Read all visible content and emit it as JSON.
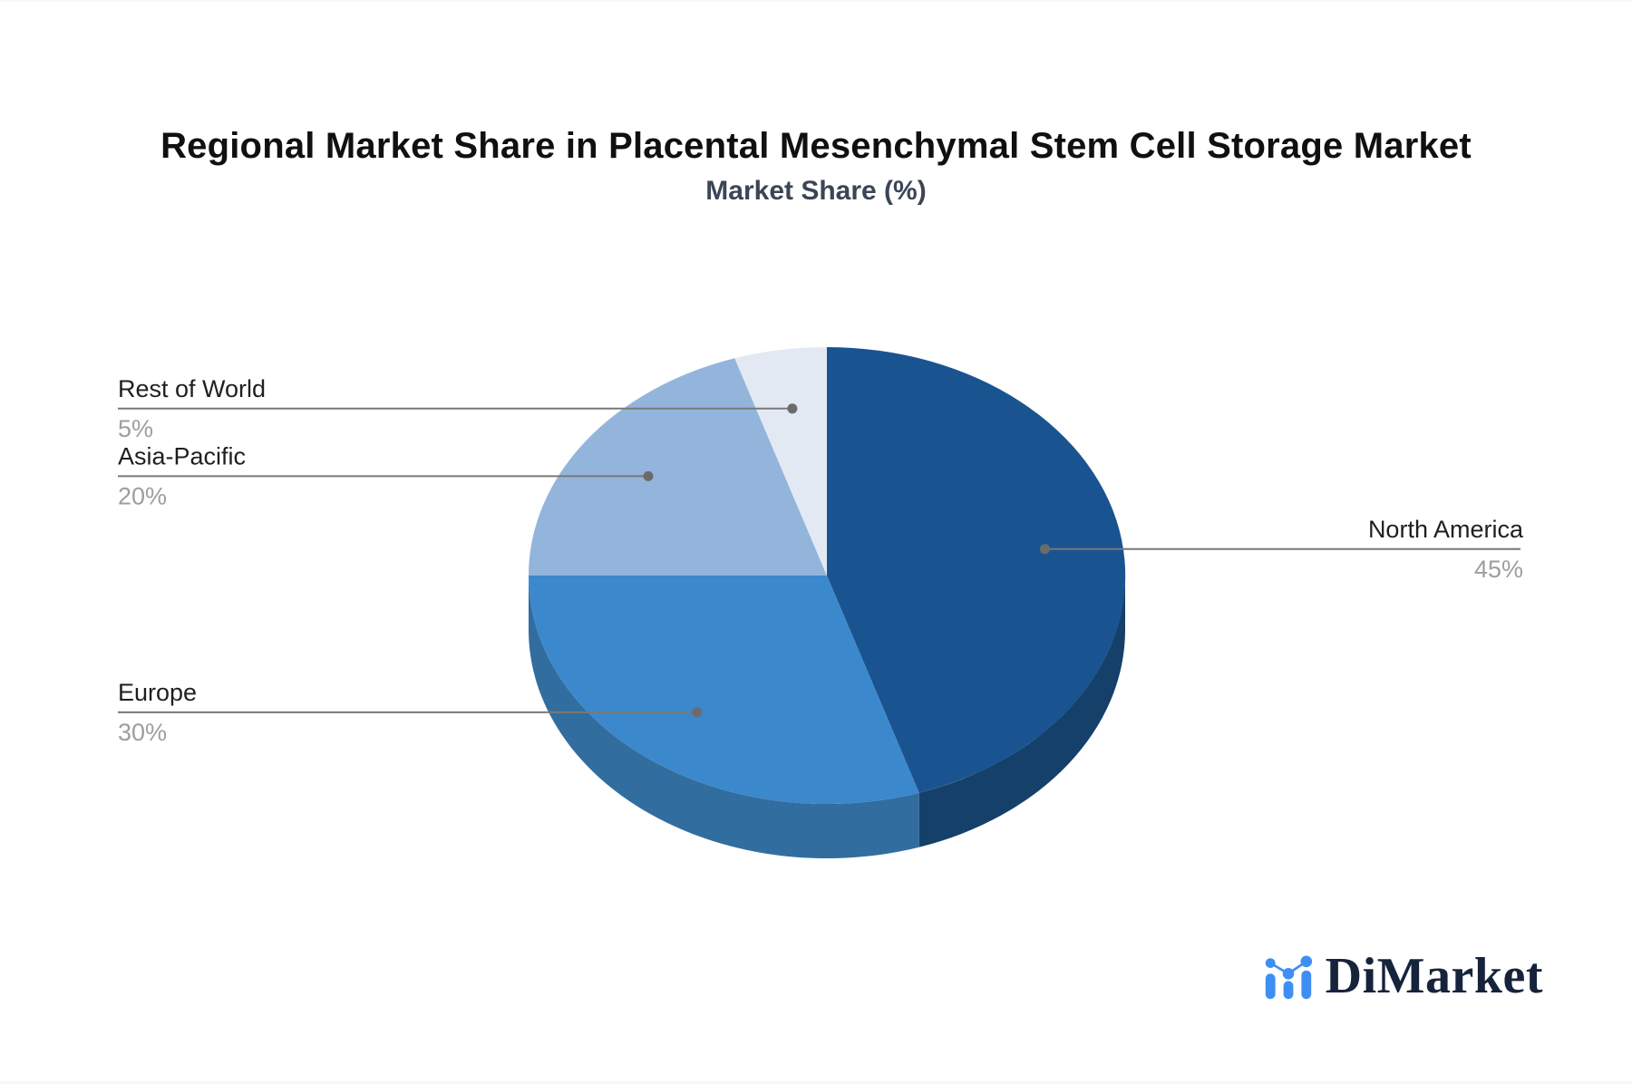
{
  "page": {
    "title": "Regional Market Share in Placental Mesenchymal Stem Cell Storage Market",
    "subtitle": "Market Share (%)"
  },
  "brand": {
    "name": "DiMarket",
    "icon": "bar-chart-logo-icon",
    "icon_color": "#3f8ef3",
    "text_color": "#16233c"
  },
  "chart_data": {
    "type": "pie",
    "style": "pie-3d",
    "title": "Regional Market Share in Placental Mesenchymal Stem Cell Storage Market",
    "subtitle": "Market Share (%)",
    "unit": "%",
    "categories": [
      "North America",
      "Europe",
      "Asia-Pacific",
      "Rest of World"
    ],
    "values": [
      45,
      30,
      20,
      5
    ],
    "value_labels": [
      "45%",
      "30%",
      "20%",
      "5%"
    ],
    "colors": [
      "#1a5490",
      "#3c88cc",
      "#93b5dc",
      "#e3e9f2"
    ],
    "side_colors": [
      "#14406a",
      "#316e9f",
      "#7fa3c9",
      "#c9d4e4"
    ],
    "start_angle_deg": 0,
    "clockwise": true,
    "label_sides": [
      "right",
      "left",
      "left",
      "left"
    ],
    "legend": "none",
    "leader_line_color": "#787878",
    "leader_dot_color": "#6b6b6b",
    "label_name_color": "#1f1f1f",
    "label_value_color": "#9e9e9e",
    "background_color": "#ffffff"
  }
}
